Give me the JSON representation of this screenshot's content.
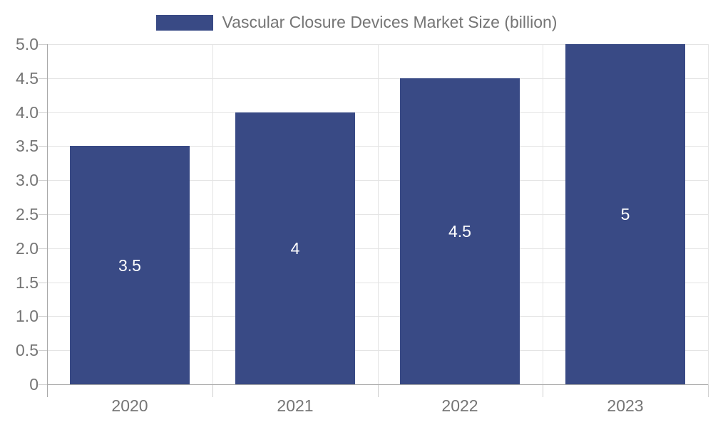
{
  "legend": {
    "label": "Vascular Closure Devices Market Size (billion)",
    "swatch_color": "#394a85"
  },
  "chart_data": {
    "type": "bar",
    "title": "Vascular Closure Devices Market Size (billion)",
    "categories": [
      "2020",
      "2021",
      "2022",
      "2023"
    ],
    "values": [
      3.5,
      4,
      4.5,
      5
    ],
    "bar_labels": [
      "3.5",
      "4",
      "4.5",
      "5"
    ],
    "series": [
      {
        "name": "Vascular Closure Devices Market Size (billion)",
        "values": [
          3.5,
          4,
          4.5,
          5
        ]
      }
    ],
    "xlabel": "",
    "ylabel": "",
    "ylim": [
      0,
      5
    ],
    "ytick_step": 0.5,
    "ytick_labels": [
      "0",
      "0.5",
      "1.0",
      "1.5",
      "2.0",
      "2.5",
      "3.0",
      "3.5",
      "4.0",
      "4.5",
      "5.0"
    ],
    "grid": true,
    "legend_position": "top",
    "colors": {
      "bar": "#394a85",
      "value_label": "#ffffff",
      "axis_text": "#757575",
      "gridline": "#e4e4e4",
      "spine": "#a8a8a8",
      "tick": "#cfcfcf"
    }
  }
}
